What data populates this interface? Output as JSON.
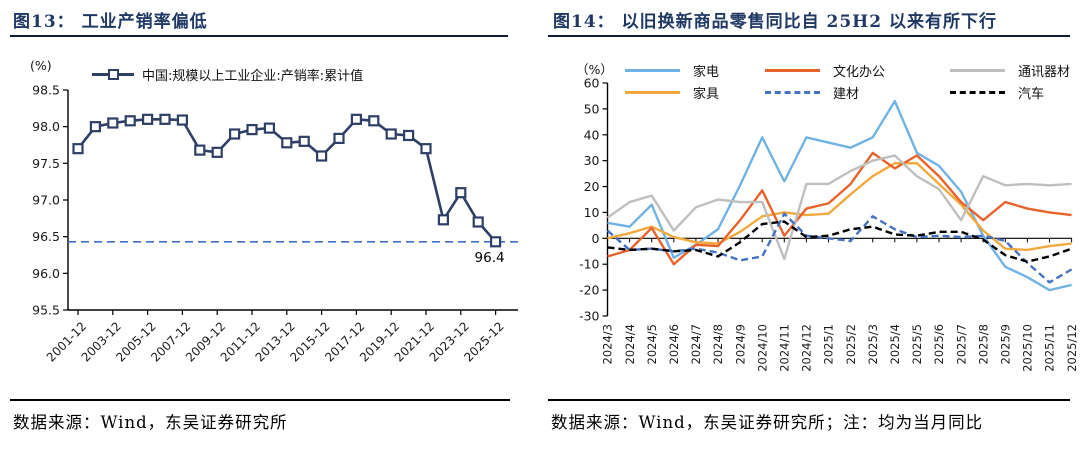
{
  "panel_left": {
    "title": "图13： 工业产销率偏低",
    "unit_label": "(%)",
    "source": "数据来源：Wind，东吴证券研究所"
  },
  "panel_right": {
    "title": "图14： 以旧换新商品零售同比自 25H2 以来有所下行",
    "unit_label": "（%）",
    "source": "数据来源：Wind，东吴证券研究所；注：均为当月同比"
  },
  "chart_data": [
    {
      "type": "line",
      "title": "工业产销率偏低",
      "xlabel": "",
      "ylabel": "%",
      "ylim": [
        95.5,
        98.5
      ],
      "ytick_step": 0.5,
      "grid": false,
      "legend_position": "top",
      "x": [
        "2001-12",
        "2002-12",
        "2003-12",
        "2004-12",
        "2005-12",
        "2006-12",
        "2007-12",
        "2008-12",
        "2009-12",
        "2010-12",
        "2011-12",
        "2012-12",
        "2013-12",
        "2014-12",
        "2015-12",
        "2016-12",
        "2017-12",
        "2018-12",
        "2019-12",
        "2020-12",
        "2021-12",
        "2022-12",
        "2023-12",
        "2024-12",
        "2025-12"
      ],
      "x_tick_every": 2,
      "series": [
        {
          "name": "中国:规模以上工业企业:产销率:累计值",
          "color": "#2E3F67",
          "marker": "square",
          "values": [
            97.7,
            98.0,
            98.05,
            98.08,
            98.1,
            98.1,
            98.09,
            97.68,
            97.65,
            97.9,
            97.96,
            97.98,
            97.78,
            97.8,
            97.6,
            97.84,
            98.1,
            98.08,
            97.9,
            97.88,
            97.7,
            96.73,
            97.1,
            96.7,
            96.43
          ]
        }
      ],
      "reference_line": {
        "value": 96.43,
        "label": "96.4",
        "color": "#4070C8",
        "style": "dashed"
      }
    },
    {
      "type": "line",
      "title": "以旧换新商品零售同比自 25H2 以来有所下行",
      "xlabel": "",
      "ylabel": "%",
      "ylim": [
        -30,
        60
      ],
      "ytick_step": 10,
      "grid": false,
      "legend_position": "top",
      "x": [
        "2024/3",
        "2024/4",
        "2024/5",
        "2024/6",
        "2024/7",
        "2024/8",
        "2024/9",
        "2024/10",
        "2024/11",
        "2024/12",
        "2025/1",
        "2025/2",
        "2025/3",
        "2025/4",
        "2025/5",
        "2025/6",
        "2025/7",
        "2025/8",
        "2025/9",
        "2025/10",
        "2025/11",
        "2025/12"
      ],
      "series": [
        {
          "name": "家电",
          "color": "#6FB3E6",
          "dashed": false,
          "values": [
            6,
            4.5,
            13,
            -7.5,
            -2.5,
            3.5,
            20.5,
            39,
            22,
            39,
            37,
            35,
            39,
            53,
            33,
            28,
            18,
            1,
            -11,
            -15,
            -20,
            -18
          ]
        },
        {
          "name": "家具",
          "color": "#F2A93C",
          "dashed": false,
          "values": [
            0,
            2,
            4.5,
            0.5,
            -1.5,
            -2,
            2.5,
            8.5,
            10,
            9,
            9.5,
            17,
            24,
            29,
            29,
            21,
            13,
            3,
            -4,
            -4.5,
            -3,
            -2
          ]
        },
        {
          "name": "文化办公",
          "color": "#E8632C",
          "dashed": false,
          "values": [
            -7,
            -4.5,
            4,
            -10,
            -2.5,
            -3,
            7,
            18.5,
            1,
            11.5,
            13.5,
            21,
            33,
            27,
            32,
            24,
            14,
            7,
            14,
            11.5,
            10,
            9
          ]
        },
        {
          "name": "通讯器材",
          "color": "#BFBFBF",
          "dashed": false,
          "values": [
            8,
            14,
            16.5,
            3,
            12,
            15,
            14,
            14,
            -8,
            21,
            21,
            26,
            30,
            32,
            24,
            19,
            7,
            24,
            20.5,
            21,
            20.5,
            21
          ]
        },
        {
          "name": "建材",
          "color": "#4472C4",
          "dashed": true,
          "values": [
            3,
            -4.5,
            -4,
            -5,
            -4,
            -5.5,
            -8.5,
            -7,
            9.5,
            1,
            0,
            -1,
            8.5,
            3.5,
            0.5,
            1,
            0.5,
            1,
            -1,
            -9.5,
            -17,
            -12
          ]
        },
        {
          "name": "汽车",
          "color": "#000000",
          "dashed": true,
          "values": [
            -3.5,
            -4.5,
            -4,
            -5,
            -4.5,
            -7,
            -1.5,
            5.5,
            6.5,
            0.5,
            1,
            3.5,
            4.5,
            1.5,
            1,
            2.5,
            2.5,
            -0.5,
            -6.5,
            -9,
            -7,
            -4
          ]
        }
      ]
    }
  ]
}
